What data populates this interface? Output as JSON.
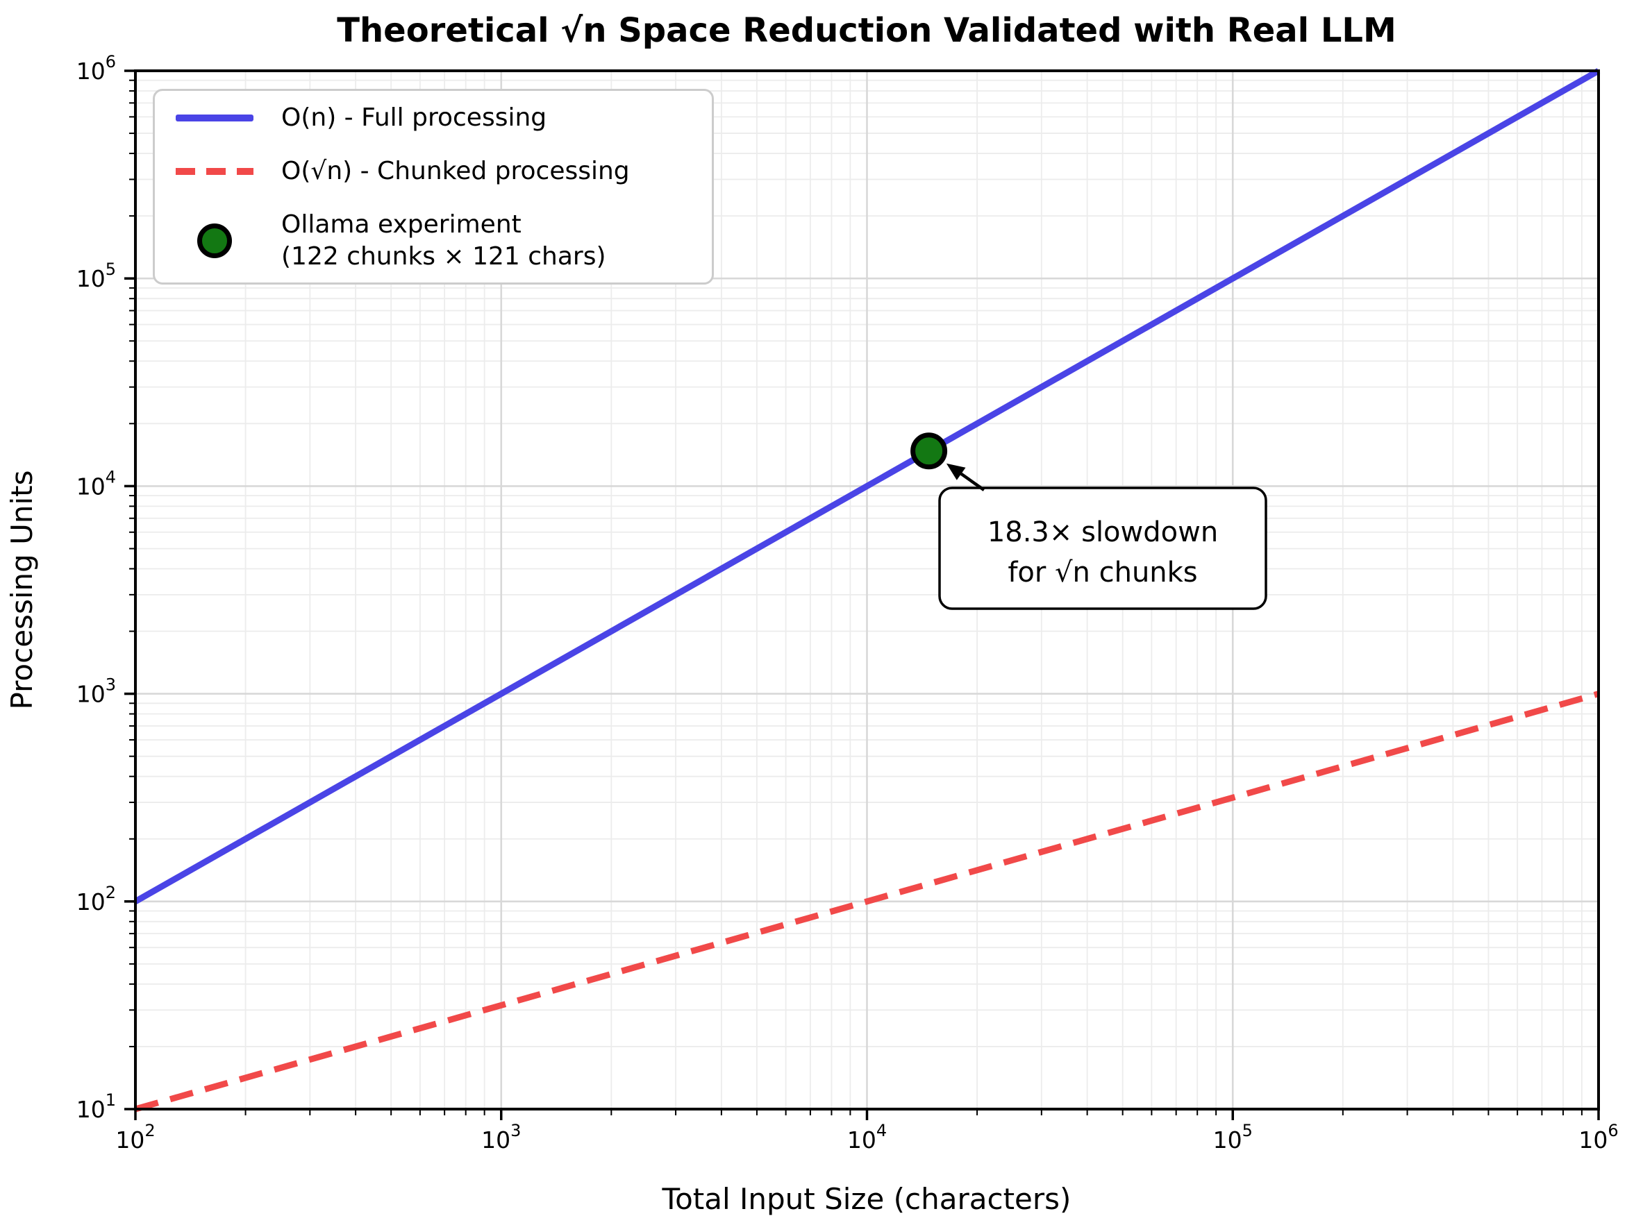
{
  "chart_data": {
    "type": "line",
    "title": "Theoretical √n Space Reduction Validated with Real LLM",
    "xlabel": "Total Input Size (characters)",
    "ylabel": "Processing Units",
    "x_scale": "log",
    "y_scale": "log",
    "xlim": [
      100,
      1000000
    ],
    "ylim": [
      10,
      1000000
    ],
    "x_tick_exponents": [
      2,
      3,
      4,
      5,
      6
    ],
    "y_tick_exponents": [
      1,
      2,
      3,
      4,
      5,
      6
    ],
    "grid": "major+minor",
    "legend_position": "upper left",
    "series": [
      {
        "name": "O(n) - Full processing",
        "style": "solid",
        "color": "#4a44e6",
        "x": [
          100,
          1000000
        ],
        "y": [
          100,
          1000000
        ]
      },
      {
        "name": "O(√n) - Chunked processing",
        "style": "dashed",
        "color": "#f14949",
        "x": [
          100,
          1000000
        ],
        "y": [
          10,
          1000
        ]
      }
    ],
    "experiment_point": {
      "label_lines": [
        "Ollama experiment",
        "(122 chunks × 121 chars)"
      ],
      "x": 14762,
      "y": 14762,
      "fill": "#137813",
      "edge": "#000000"
    },
    "annotation": {
      "lines": [
        "18.3× slowdown",
        "for √n chunks"
      ],
      "target_x": 14762,
      "target_y": 14762
    }
  },
  "colors": {
    "grid_major": "#d8d8d8",
    "grid_minor": "#ececec",
    "spine": "#000000",
    "legend_border": "#cccccc"
  }
}
